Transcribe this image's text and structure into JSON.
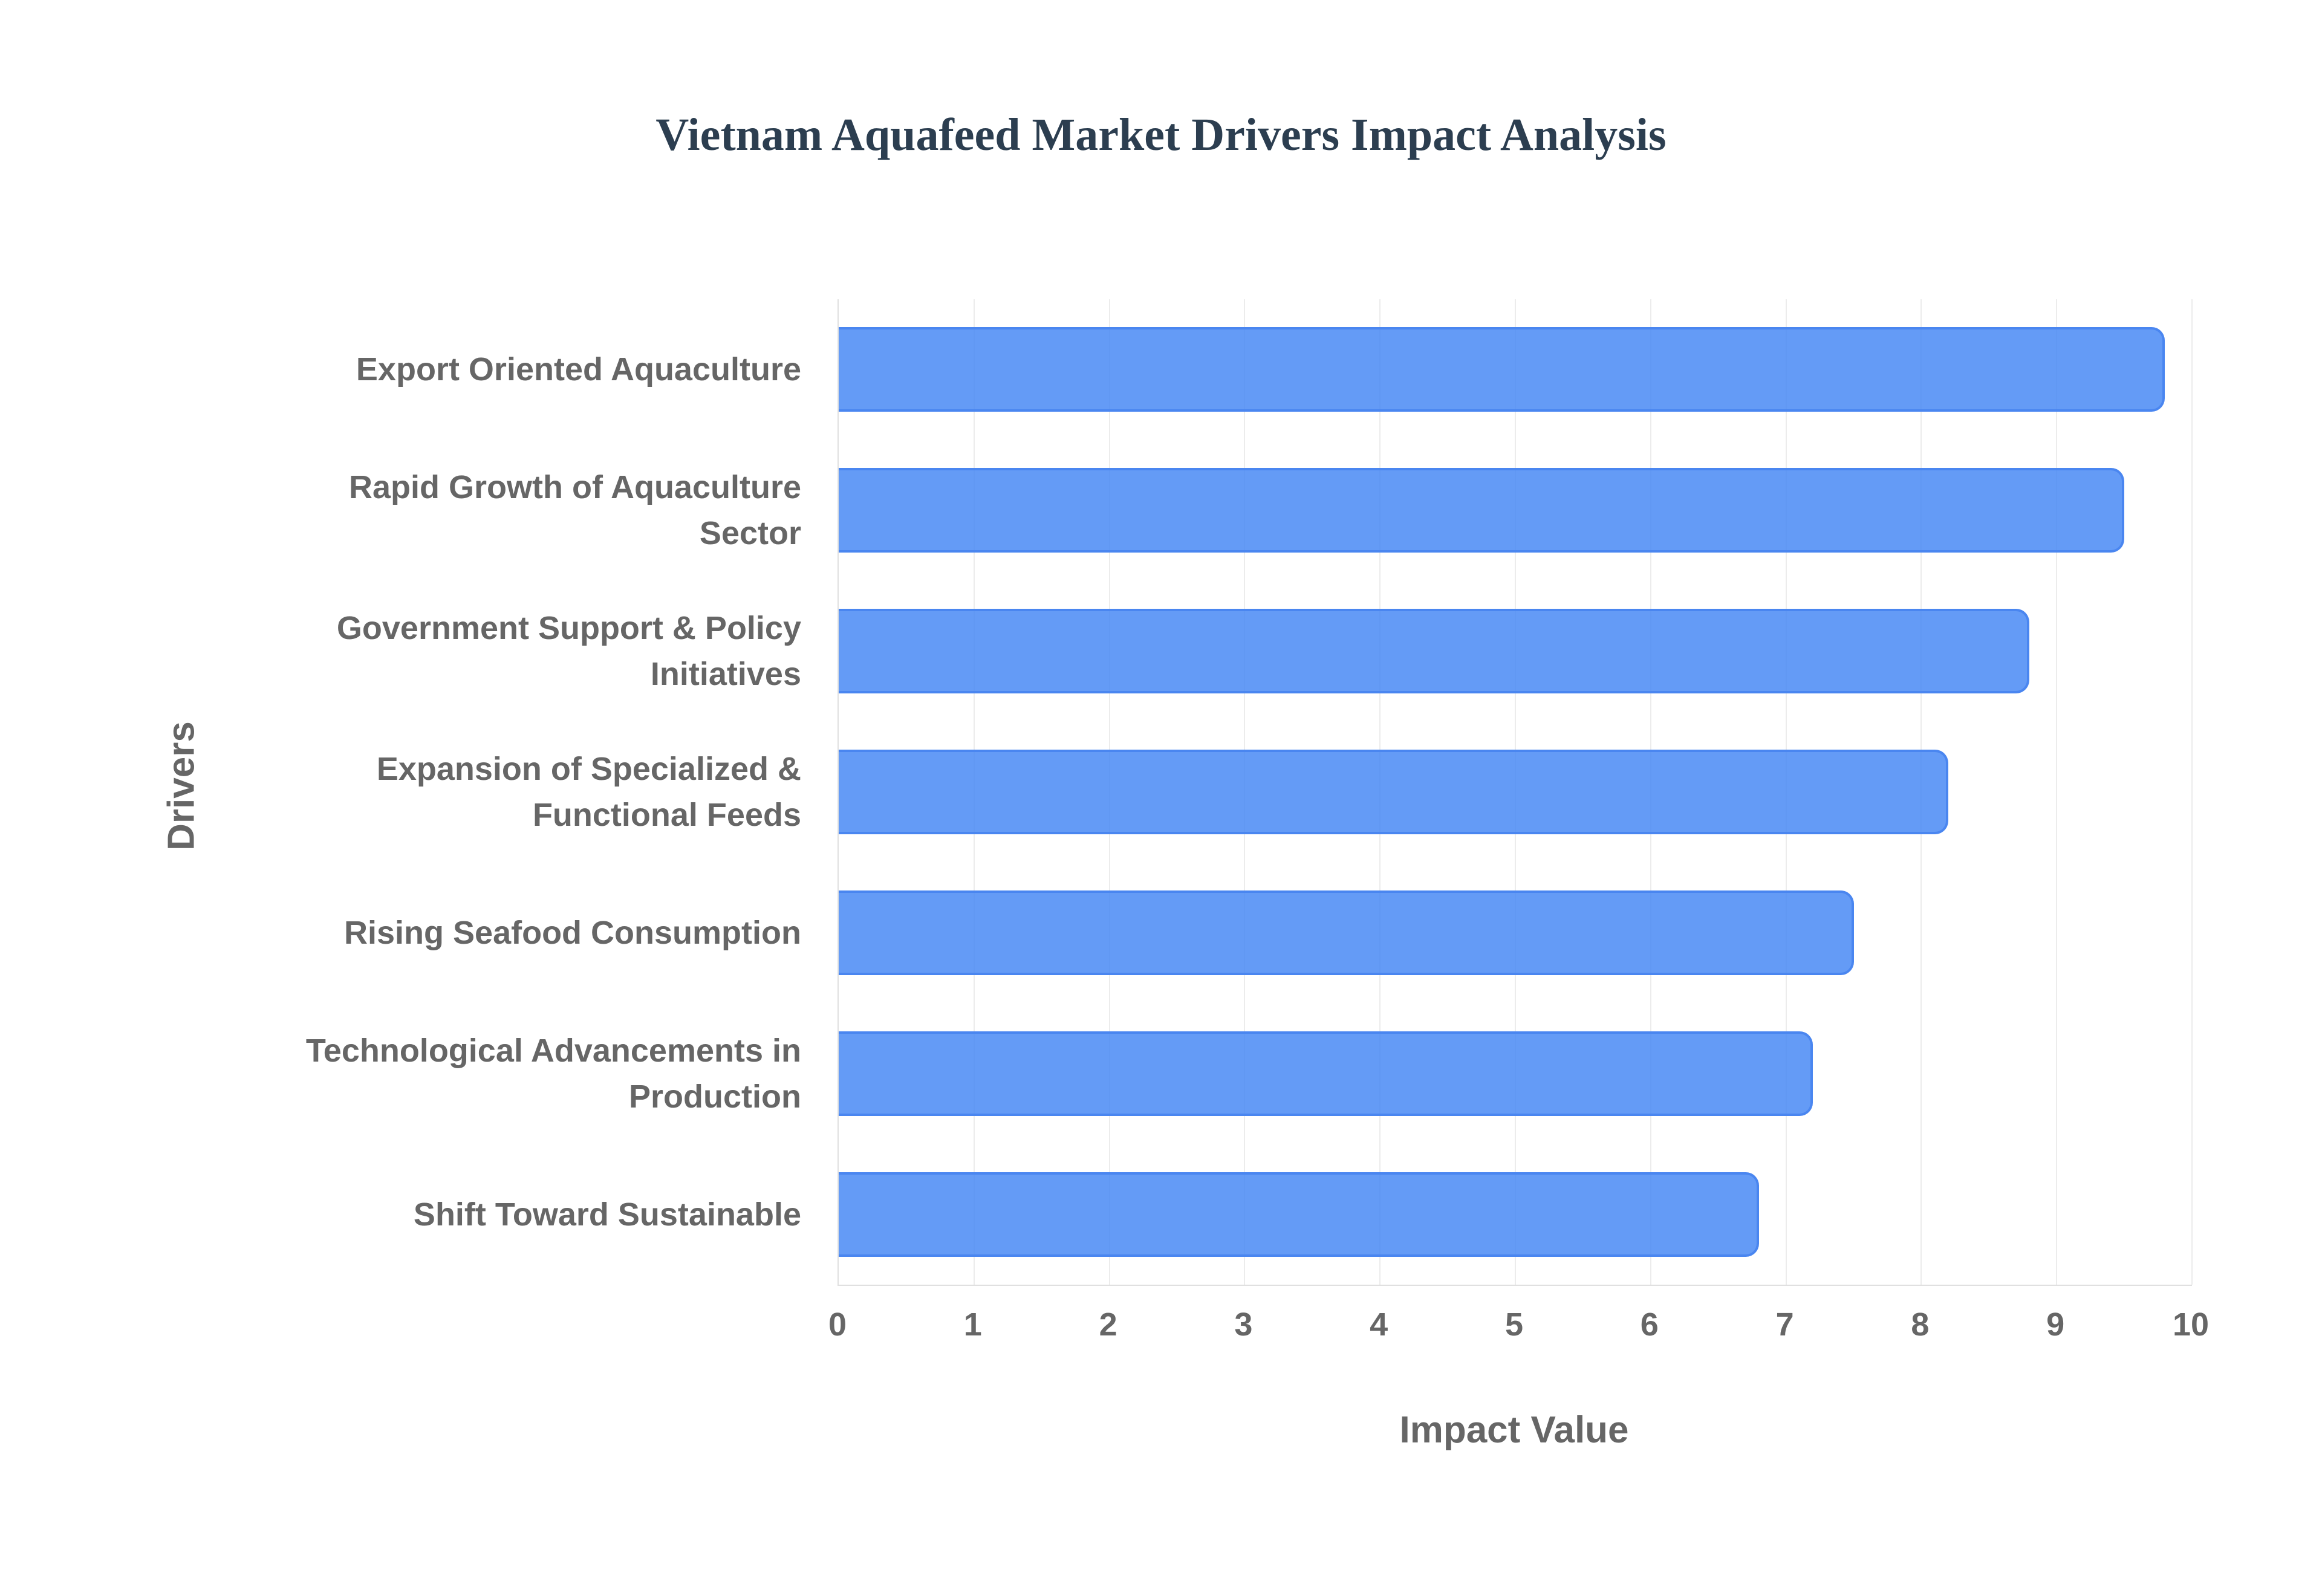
{
  "chart": {
    "title": "Vietnam Aquafeed Market Drivers Impact Analysis",
    "xlabel": "Impact Value",
    "ylabel": "Drivers"
  },
  "chart_data": {
    "type": "bar",
    "orientation": "horizontal",
    "title": "Vietnam Aquafeed Market Drivers Impact Analysis",
    "xlabel": "Impact Value",
    "ylabel": "Drivers",
    "categories": [
      "Export Oriented Aquaculture",
      "Rapid Growth of Aquaculture Sector",
      "Government Support & Policy Initiatives",
      "Expansion of Specialized & Functional Feeds",
      "Rising Seafood Consumption",
      "Technological Advancements in Production",
      "Shift Toward Sustainable"
    ],
    "values": [
      9.8,
      9.5,
      8.8,
      8.2,
      7.5,
      7.2,
      6.8
    ],
    "xlim": [
      0,
      10
    ],
    "xticks": [
      "0",
      "1",
      "2",
      "3",
      "4",
      "5",
      "6",
      "7",
      "8",
      "9",
      "10"
    ],
    "grid": true,
    "legend": null,
    "bar_color": "#4285f4"
  },
  "labels": [
    [
      "Export Oriented Aquaculture"
    ],
    [
      "Rapid Growth of Aquaculture",
      "Sector"
    ],
    [
      "Government Support & Policy",
      "Initiatives"
    ],
    [
      "Expansion of Specialized &",
      "Functional Feeds"
    ],
    [
      "Rising Seafood Consumption"
    ],
    [
      "Technological Advancements in",
      "Production"
    ],
    [
      "Shift Toward Sustainable"
    ]
  ]
}
